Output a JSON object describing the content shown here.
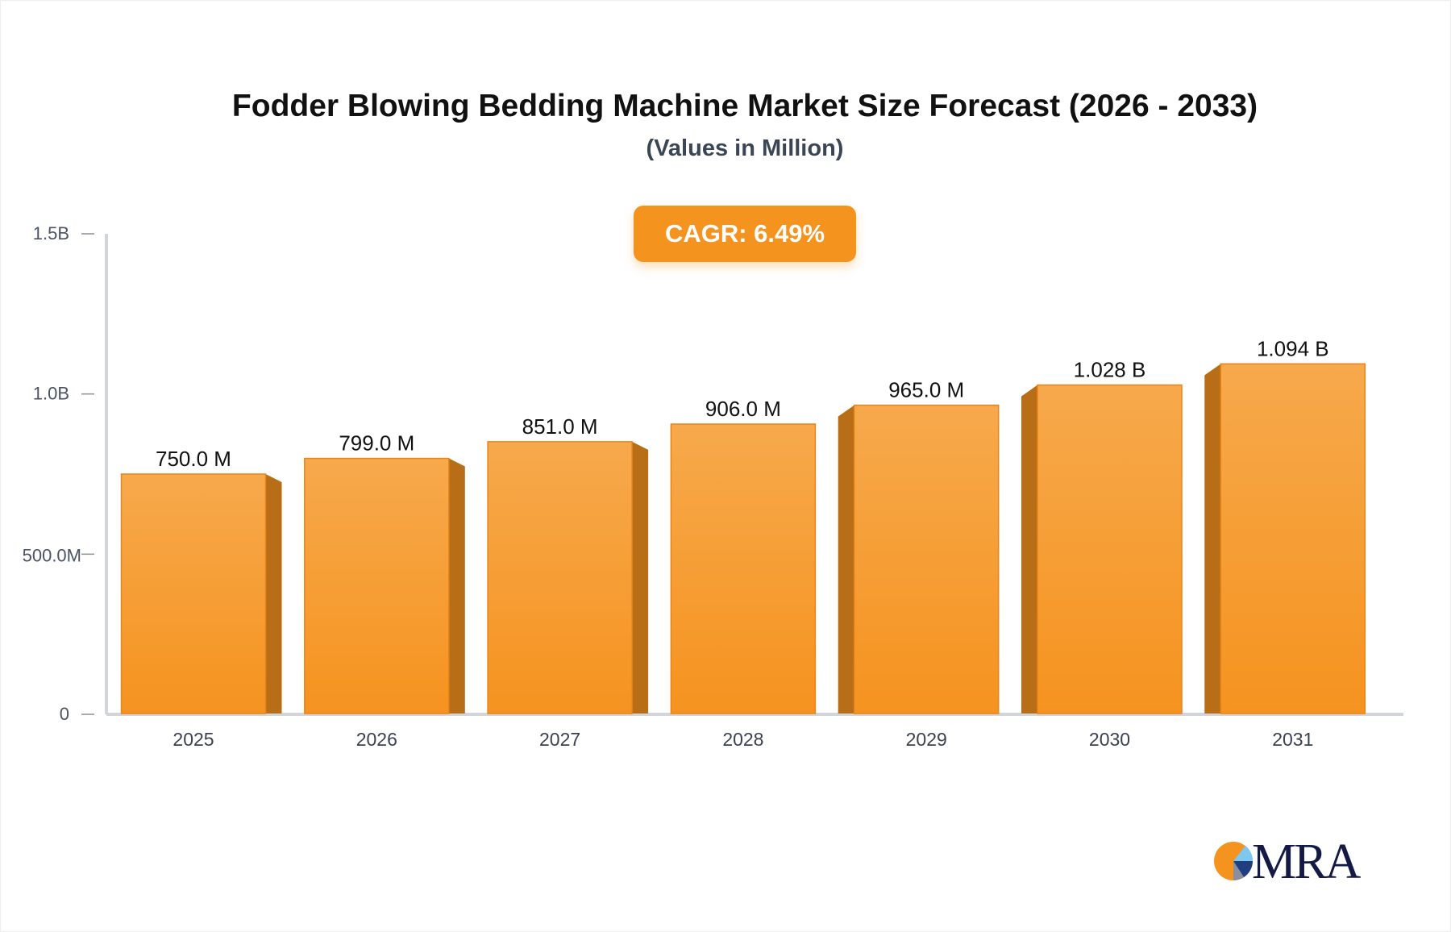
{
  "chart_data": {
    "type": "bar",
    "title": "Fodder Blowing Bedding Machine Market Size Forecast (2026 - 2033)",
    "subtitle": "(Values in Million)",
    "categories": [
      "2025",
      "2026",
      "2027",
      "2028",
      "2029",
      "2030",
      "2031"
    ],
    "values": [
      750.0,
      799.0,
      851.0,
      906.0,
      965.0,
      1028,
      1094
    ],
    "value_labels": [
      "750.0 M",
      "799.0 M",
      "851.0 M",
      "906.0 M",
      "965.0 M",
      "1.028 B",
      "1.094 B"
    ],
    "unit": "Million",
    "ylim": [
      0,
      1500
    ],
    "y_ticks": [
      0,
      500,
      1000,
      1500
    ],
    "y_tick_labels": [
      "0",
      "500.0M",
      "1.0B",
      "1.5B"
    ],
    "xlabel": "",
    "ylabel": "",
    "grid": false,
    "annotation": "CAGR: 6.49%",
    "colors": {
      "bar": "#f5931f",
      "bar_side": "#b86e17",
      "axis": "#d3d5dc",
      "badge": "#f5931f"
    }
  },
  "logo": {
    "text": "MRA"
  }
}
